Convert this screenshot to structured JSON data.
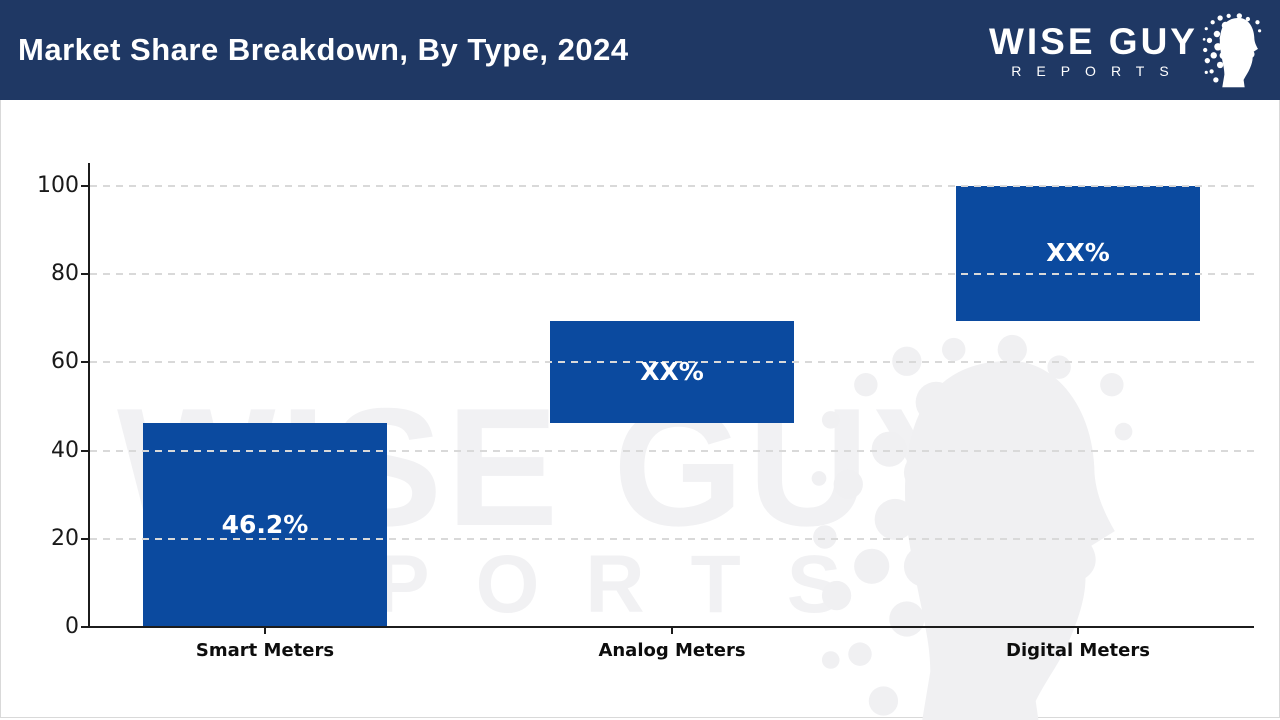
{
  "header": {
    "title": "Market Share Breakdown, By Type, 2024",
    "brand": {
      "line1": "WISE GUY",
      "line2": "REPORTS"
    },
    "bg_color": "#1f3864"
  },
  "watermark": {
    "line1": "WISE GUY",
    "line2": "REPORTS"
  },
  "chart_data": {
    "type": "bar",
    "subtype": "floating-waterfall",
    "title": "Market Share Breakdown, By Type, 2024",
    "categories": [
      "Smart Meters",
      "Analog Meters",
      "Digital Meters"
    ],
    "series": [
      {
        "name": "Market Share (%)",
        "start": [
          0,
          46.2,
          69.4
        ],
        "end": [
          46.2,
          69.4,
          100
        ]
      }
    ],
    "bar_labels": [
      "46.2%",
      "XX%",
      "XX%"
    ],
    "xlabel": "",
    "ylabel": "",
    "ylim": [
      0,
      100
    ],
    "yticks": [
      0,
      20,
      40,
      60,
      80,
      100
    ],
    "grid": "horizontal-dashed",
    "legend": "none",
    "bar_color": "#0b4a9f",
    "grid_color": "#d9d9d9",
    "label_color": "#ffffff"
  }
}
